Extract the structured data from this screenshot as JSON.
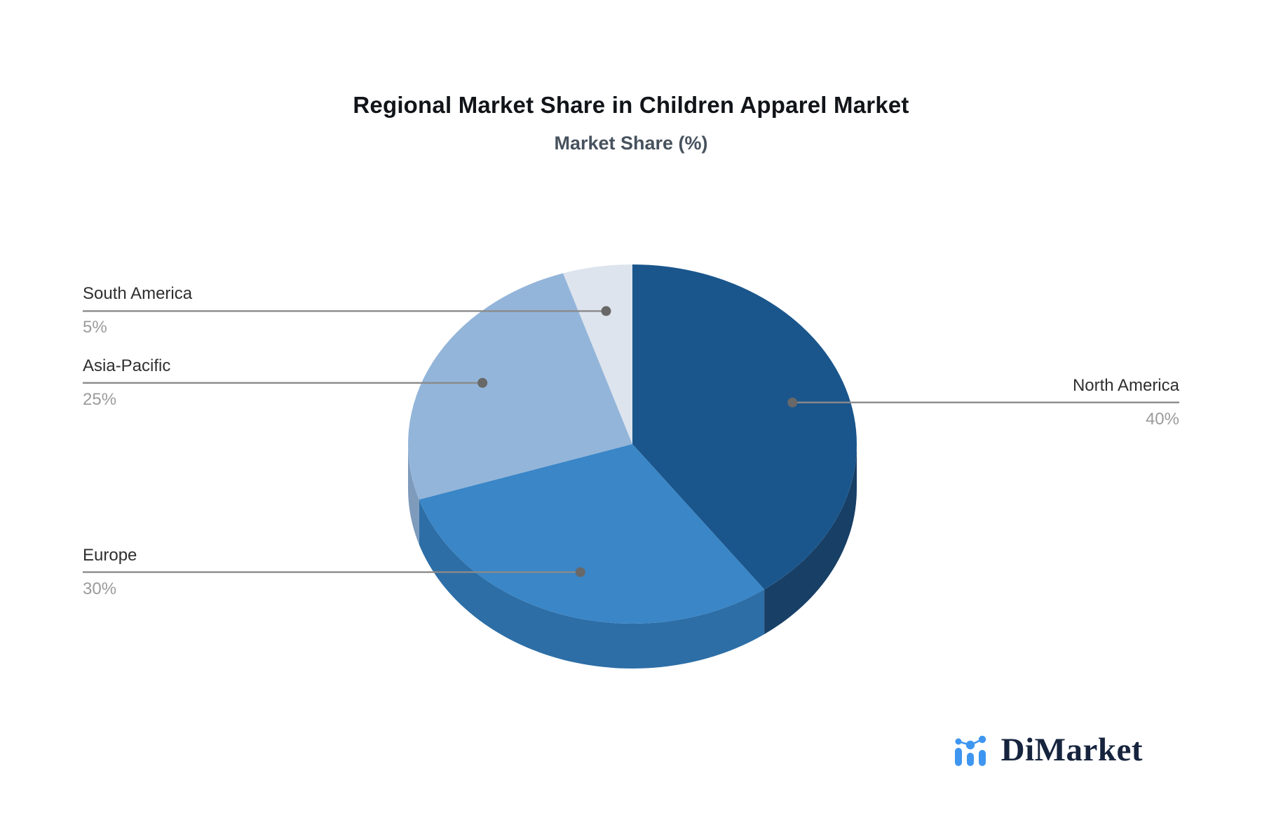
{
  "brand": {
    "name": "DiMarket",
    "icon_color": "#3E96F0"
  },
  "chart_data": {
    "type": "pie",
    "title": "Regional Market Share in Children Apparel Market",
    "subtitle": "Market Share (%)",
    "unit": "%",
    "effect": "3d",
    "start_angle_deg": 0,
    "direction": "clockwise",
    "legend_position": "none",
    "labels_format": "leader line with region name above and percent below",
    "slices": [
      {
        "label": "North America",
        "value": 40,
        "color": "#1A568C",
        "side_color": "#183F66",
        "label_side": "right"
      },
      {
        "label": "Europe",
        "value": 30,
        "color": "#3A86C7",
        "side_color": "#2D6EA6",
        "label_side": "left"
      },
      {
        "label": "Asia-Pacific",
        "value": 25,
        "color": "#93B5D9",
        "side_color": "#7E9BBC",
        "label_side": "left"
      },
      {
        "label": "South America",
        "value": 5,
        "color": "#DDE4EE",
        "side_color": "#C2CBD9",
        "label_side": "left"
      }
    ]
  }
}
